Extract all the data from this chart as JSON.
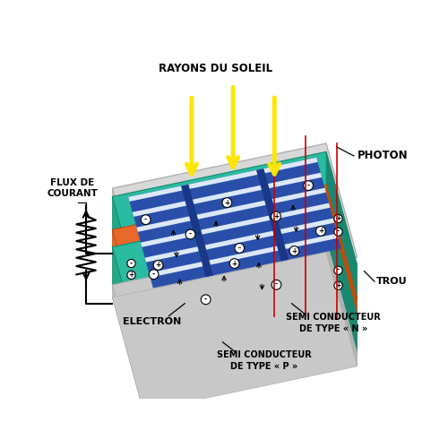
{
  "labels": {
    "rayons_du_soleil": "RAYONS DU SOLEIL",
    "photon": "PHOTON",
    "flux_de_courant": "FLUX DE\nCOURANT",
    "electron": "ELECTRON",
    "trou": "TROU",
    "semi_n": "SEMI CONDUCTEUR\nDE TYPE « N »",
    "semi_p": "SEMI CONDUCTEUR\nDE TYPE « P »"
  },
  "colors": {
    "blue_cell": "#2a4faa",
    "blue_cell_dark": "#1a3888",
    "white_stripe": "#dce8f8",
    "orange_layer": "#e8682a",
    "orange_dark": "#b84e10",
    "teal_layer": "#2abba0",
    "teal_dark": "#1a8870",
    "teal_mid": "#20a888",
    "gray_frame": "#d8d8d8",
    "gray_frame_dark": "#b0b0b0",
    "gray_side": "#c0c0c0",
    "gray_bot": "#c8c8c8",
    "yellow_arrow": "#ffe600",
    "yellow_arrow_dark": "#ccb800",
    "red_line": "#cc0000",
    "black": "#111111",
    "white": "#ffffff",
    "bg": "#ffffff"
  }
}
